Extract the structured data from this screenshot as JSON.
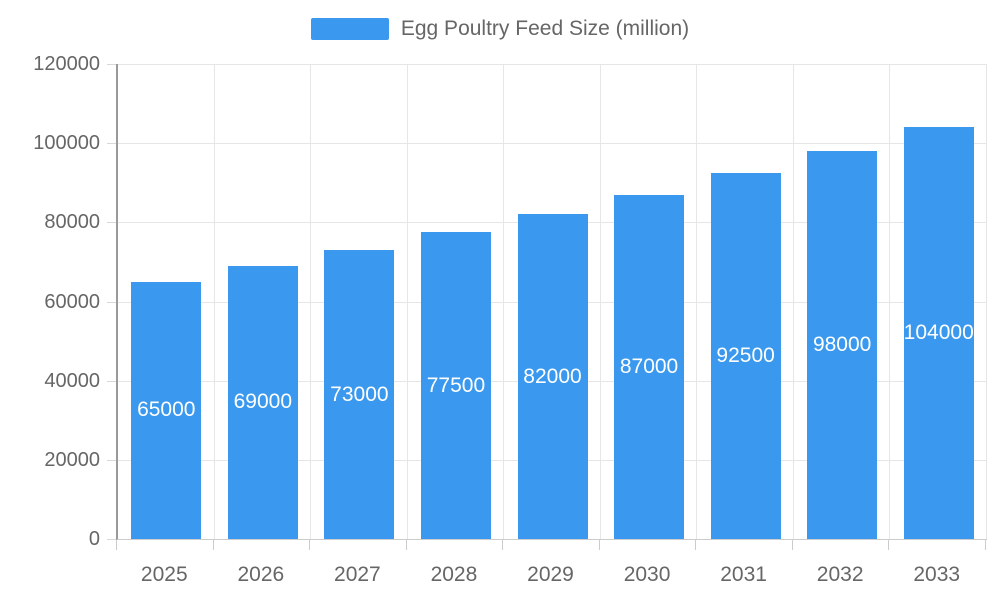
{
  "legend": {
    "label": "Egg Poultry Feed Size (million)"
  },
  "chart_data": {
    "type": "bar",
    "title": "",
    "categories": [
      "2025",
      "2026",
      "2027",
      "2028",
      "2029",
      "2030",
      "2031",
      "2032",
      "2033"
    ],
    "series": [
      {
        "name": "Egg Poultry Feed Size (million)",
        "values": [
          65000,
          69000,
          73000,
          77500,
          82000,
          87000,
          92500,
          98000,
          104000
        ]
      }
    ],
    "data_labels": [
      "65000",
      "69000",
      "73000",
      "77500",
      "82000",
      "87000",
      "92500",
      "98000",
      "104000"
    ],
    "xlabel": "",
    "ylabel": "",
    "ylim": [
      0,
      120000
    ],
    "y_ticks": [
      0,
      20000,
      40000,
      60000,
      80000,
      100000,
      120000
    ],
    "y_tick_labels": [
      "0",
      "20000",
      "40000",
      "60000",
      "80000",
      "100000",
      "120000"
    ],
    "grid": true,
    "legend_position": "top",
    "colors": {
      "bar": "#3A99EE",
      "bar_label_text": "#ffffff",
      "axis_text": "#666666",
      "grid_line": "#e6e6e6",
      "y_axis_line": "#999999",
      "x_axis_line": "#cccccc"
    }
  }
}
